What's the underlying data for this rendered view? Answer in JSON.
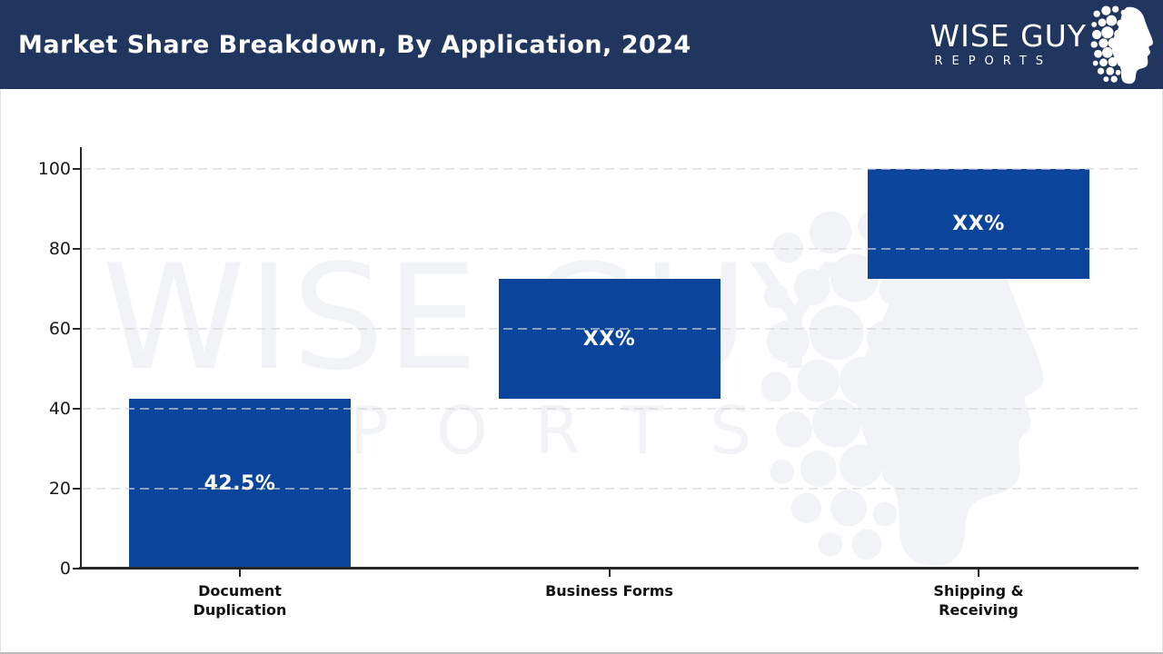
{
  "header": {
    "title": "Market Share Breakdown, By Application, 2024",
    "logo": {
      "line1": "WISE GUY",
      "line2": "REPORTS"
    }
  },
  "watermark": {
    "line1": "WISE GUY",
    "line2": "REPORTS"
  },
  "chart_data": {
    "type": "bar",
    "variant": "waterfall",
    "title": "Market Share Breakdown, By Application, 2024",
    "xlabel": "",
    "ylabel": "",
    "categories": [
      "Document Duplication",
      "Business Forms",
      "Shipping & Receiving"
    ],
    "bars": [
      {
        "category_lines": [
          "Document",
          "Duplication"
        ],
        "start": 0,
        "end": 42.5,
        "label": "42.5%"
      },
      {
        "category_lines": [
          "Business Forms"
        ],
        "start": 42.5,
        "end": 72.5,
        "label": "XX%"
      },
      {
        "category_lines": [
          "Shipping &",
          "Receiving"
        ],
        "start": 72.5,
        "end": 100,
        "label": "XX%"
      }
    ],
    "yticks": [
      0,
      20,
      40,
      60,
      80,
      100
    ],
    "ylim": [
      0,
      105
    ],
    "grid": {
      "axis": "y",
      "style": "dashed",
      "color": "#d6d6d6"
    },
    "legend": "none",
    "bar_color": "#0a459b",
    "value_label_color": "#ffffff",
    "header_color": "#21365f"
  }
}
